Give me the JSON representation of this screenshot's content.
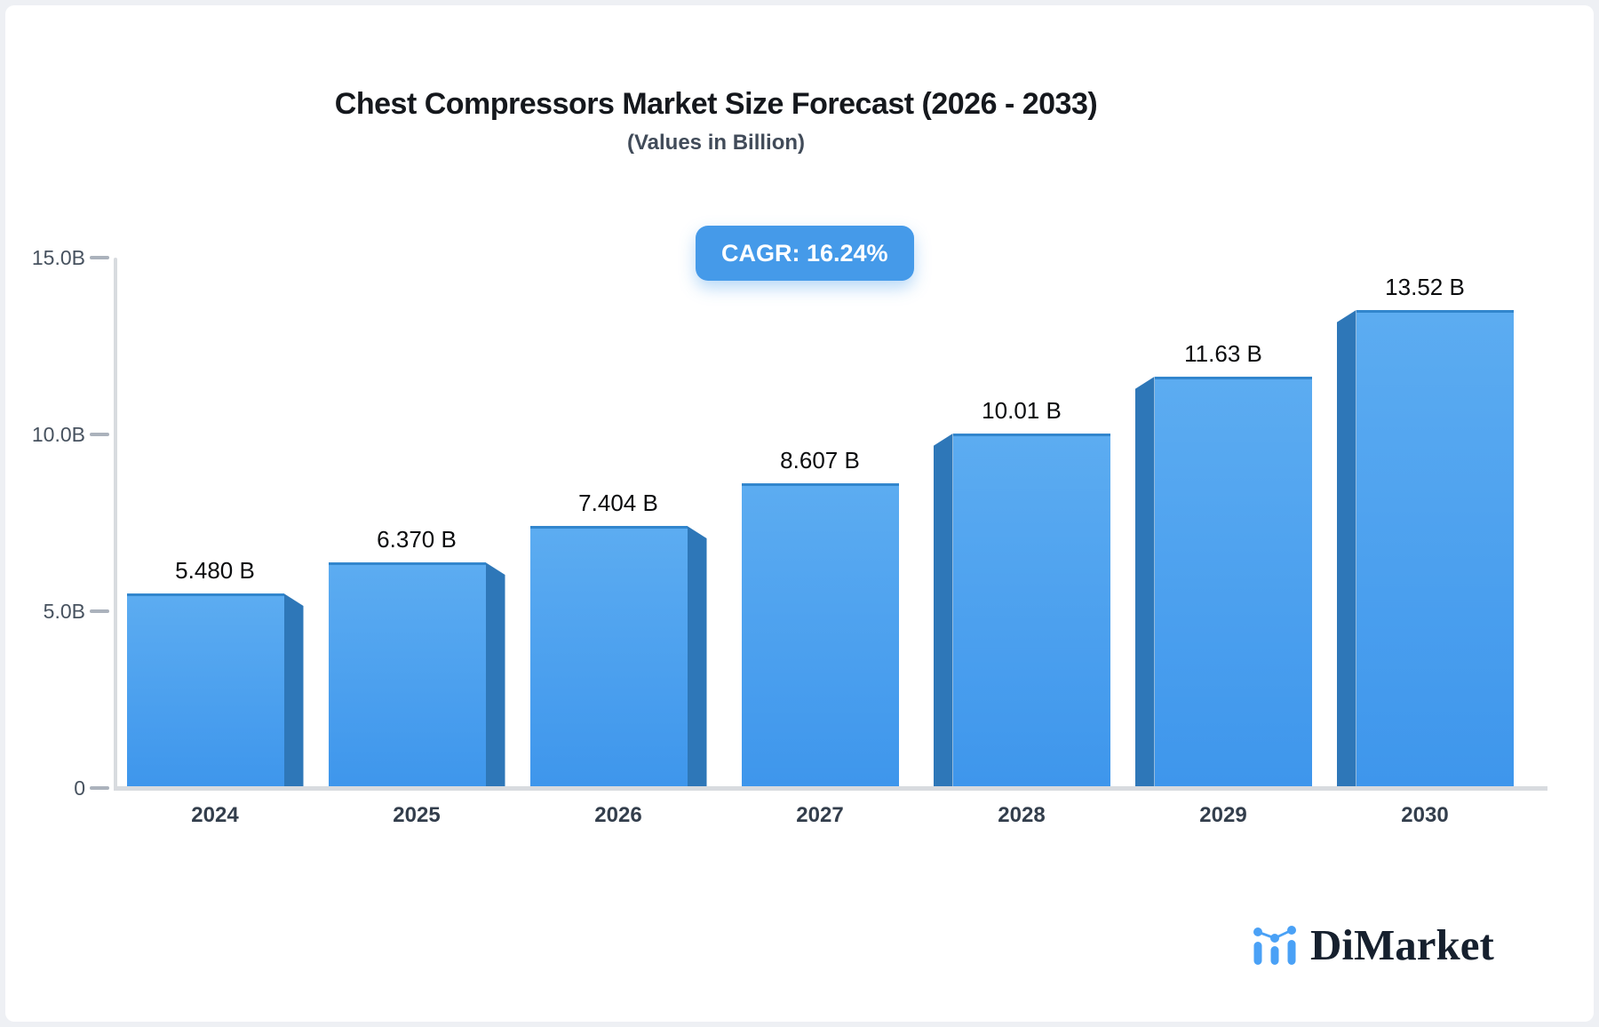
{
  "header": {
    "title": "Chest Compressors Market Size Forecast (2026 - 2033)",
    "subtitle": "(Values in Billion)"
  },
  "badge": {
    "label": "CAGR: 16.24%",
    "background": "#459ae9",
    "text_color": "#ffffff"
  },
  "chart_data": {
    "type": "bar",
    "title": "Chest Compressors Market Size Forecast (2026 - 2033)",
    "subtitle": "(Values in Billion)",
    "cagr_label": "CAGR: 16.24%",
    "cagr_percent": 16.24,
    "categories": [
      "2024",
      "2025",
      "2026",
      "2027",
      "2028",
      "2029",
      "2030"
    ],
    "values": [
      5.48,
      6.37,
      7.404,
      8.607,
      10.01,
      11.63,
      13.52
    ],
    "value_labels": [
      "5.480 B",
      "6.370 B",
      "7.404 B",
      "8.607 B",
      "10.01 B",
      "11.63 B",
      "13.52 B"
    ],
    "xlabel": "",
    "ylabel": "",
    "ylim": [
      0,
      15
    ],
    "yticks": [
      {
        "value": 0,
        "label": "0"
      },
      {
        "value": 5,
        "label": "5.0B"
      },
      {
        "value": 10,
        "label": "10.0B"
      },
      {
        "value": 15,
        "label": "15.0B"
      }
    ],
    "grid": false,
    "legend": false,
    "colors": {
      "bar_top": "#5cacf1",
      "bar_bottom": "#3e96ec",
      "bar_edge": "#3286cd",
      "bar_side": "#2e77b8",
      "axis": "#d8dbdf",
      "tick_dash": "#abb2bc",
      "y_label": "#47525f",
      "x_label": "#333e4c",
      "value_label": "#0b0c0e"
    }
  },
  "logo": {
    "text": "DiMarket",
    "icon": "mini-bar-chart-icon",
    "blue": "#4aa1f6",
    "navy": "#16202e"
  }
}
